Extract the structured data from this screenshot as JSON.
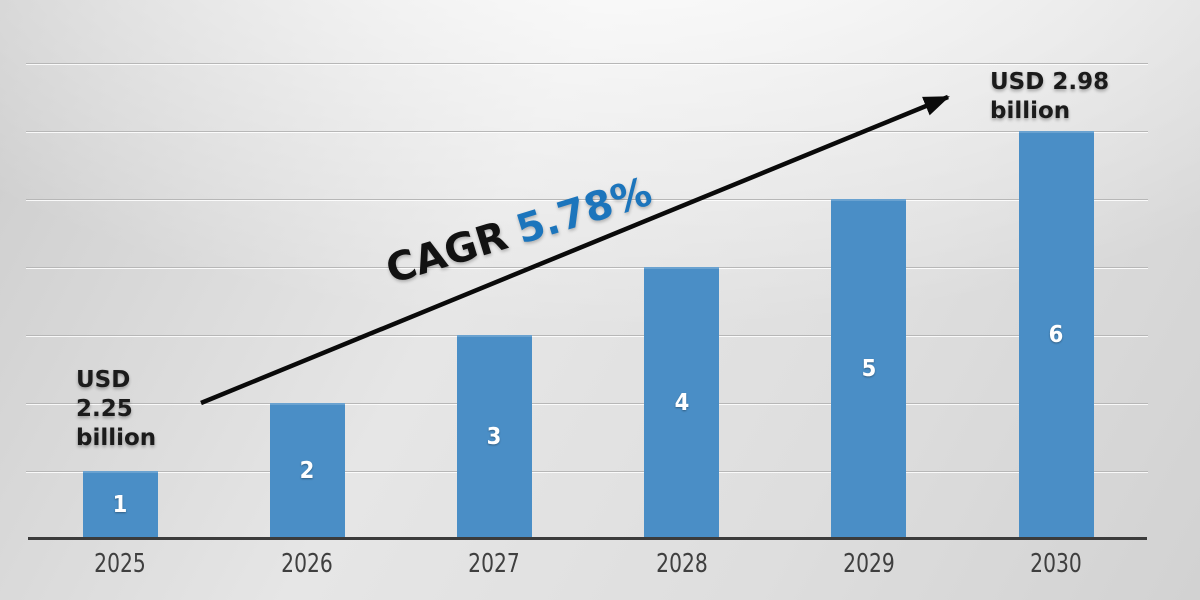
{
  "chart_data": {
    "type": "bar",
    "title": "",
    "xlabel": "",
    "ylabel": "",
    "categories": [
      "2025",
      "2026",
      "2027",
      "2028",
      "2029",
      "2030"
    ],
    "values": [
      1,
      2,
      3,
      4,
      5,
      6
    ],
    "bar_value_labels": [
      "1",
      "2",
      "3",
      "4",
      "5",
      "6"
    ],
    "ylim": [
      0,
      7.9
    ],
    "gridline_values": [
      1,
      2,
      3,
      4,
      5,
      6,
      7
    ],
    "grid": true,
    "legend": false,
    "annotations": {
      "start_value": "USD 2.25 billion",
      "end_value": "USD 2.98 billion",
      "cagr": "CAGR 5.78%",
      "trend": "straight arrow rising from 2025 level to 2030 label"
    }
  },
  "labels": {
    "start_lines": [
      "USD",
      "2.25",
      "billion"
    ],
    "end_lines": [
      "USD 2.98",
      "billion"
    ],
    "cagr_prefix": "CAGR",
    "cagr_value": "5.78%"
  },
  "colors": {
    "bar": "#4a8ec6",
    "cagr_value": "#1c75bc",
    "arrow": "#0a0a0a",
    "axis": "#3b3b3b",
    "gridline": "#b7b7b7"
  }
}
